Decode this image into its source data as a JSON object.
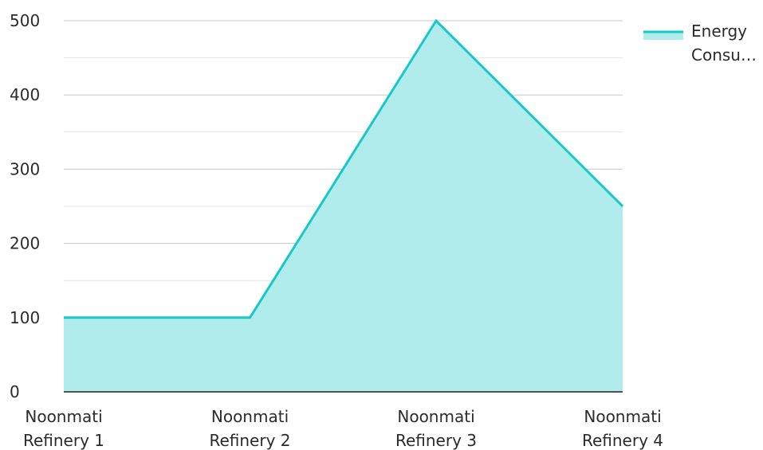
{
  "colors": {
    "line": "#18c8c8",
    "fill": "#b1ecec",
    "grid_major": "#c8c8c8",
    "grid_minor": "#e4e4e4",
    "axis": "#1f1f1f"
  },
  "chart_data": {
    "type": "area",
    "title": "",
    "xlabel": "",
    "ylabel": "",
    "categories": [
      [
        "Noonmati",
        "Refinery 1"
      ],
      [
        "Noonmati",
        "Refinery 2"
      ],
      [
        "Noonmati",
        "Refinery 3"
      ],
      [
        "Noonmati",
        "Refinery 4"
      ]
    ],
    "series": [
      {
        "name": "Energy Consu…",
        "name_lines": [
          "Energy",
          "Consu…"
        ],
        "values": [
          100,
          100,
          500,
          250
        ]
      }
    ],
    "ylim": [
      0,
      500
    ],
    "y_ticks": [
      0,
      100,
      200,
      300,
      400,
      500
    ],
    "y_minor_ticks": [
      50,
      150,
      250,
      350,
      450
    ],
    "grid": true,
    "legend_position": "top-right"
  }
}
